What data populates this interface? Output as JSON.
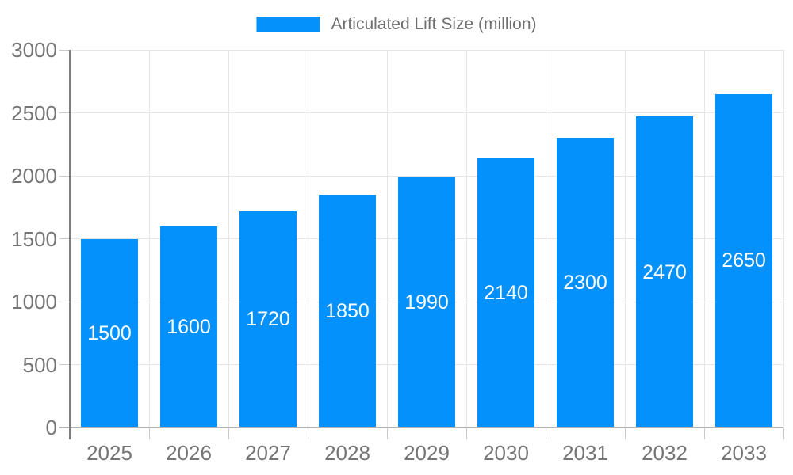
{
  "chart_data": {
    "type": "bar",
    "title": "Articulated Lift Size (million)",
    "legend": {
      "label": "Articulated Lift Size (million)",
      "position": "top"
    },
    "categories": [
      "2025",
      "2026",
      "2027",
      "2028",
      "2029",
      "2030",
      "2031",
      "2032",
      "2033"
    ],
    "values": [
      1500,
      1600,
      1720,
      1850,
      1990,
      2140,
      2300,
      2470,
      2650
    ],
    "bar_labels_shown_inside_bars": true,
    "xlabel": "",
    "ylabel": "",
    "ylim": [
      0,
      3000
    ],
    "yticks": [
      0,
      500,
      1000,
      1500,
      2000,
      2500,
      3000
    ],
    "grid": true,
    "colors": {
      "bar": "#0591fb",
      "grid": "#e6e6e6",
      "y_axis_line": "#7d7d7d",
      "x_axis_line": "#b2b2b2",
      "tick": "#c9c9c9",
      "axis_label_text": "#757575",
      "legend_text": "#6e6e6e",
      "bar_label_text": "#ffffff"
    }
  }
}
